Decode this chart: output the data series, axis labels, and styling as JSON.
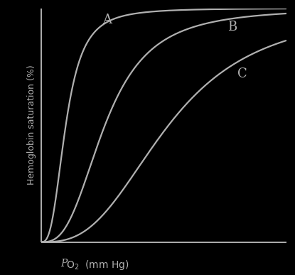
{
  "background_color": "#000000",
  "axes_color": "#b0b0b0",
  "curve_color": "#b0b0b0",
  "ylabel": "Hemoglobin saturation (%)",
  "curves": {
    "A": {
      "n": 2.8,
      "p50": 10
    },
    "B": {
      "n": 2.8,
      "p50": 26
    },
    "C": {
      "n": 2.8,
      "p50": 52
    }
  },
  "curve_labels": [
    "A",
    "B",
    "C"
  ],
  "label_positions": {
    "A": [
      27,
      95
    ],
    "B": [
      78,
      92
    ],
    "C": [
      82,
      72
    ]
  },
  "xlim": [
    0,
    100
  ],
  "ylim": [
    0,
    100
  ],
  "linewidth": 1.6,
  "label_fontsize": 13,
  "ylabel_fontsize": 9,
  "xlabel_fontsize": 10,
  "spine_linewidth": 1.4
}
